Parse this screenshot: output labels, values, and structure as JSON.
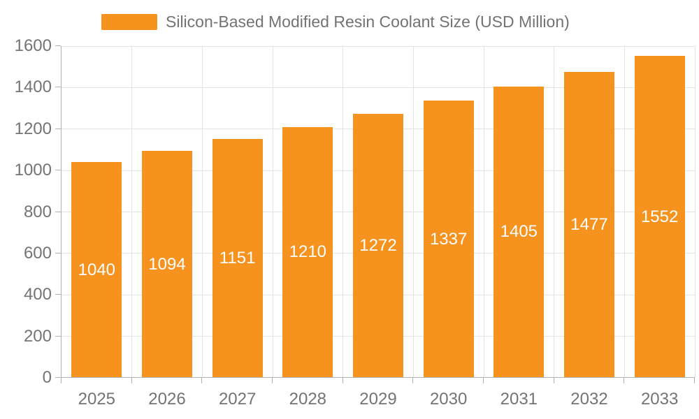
{
  "page": {
    "background": "#FFFFFF"
  },
  "colors": {
    "bar": "#F6921E",
    "bar_label": "#FFFFFF",
    "axis_line": "#B0B0B0",
    "grid_line": "#E3E3E3",
    "axis_text": "#747474",
    "legend_text": "#737373"
  },
  "legend": {
    "label": "Silicon-Based Modified Resin Coolant Size (USD Million)",
    "swatch_color": "#F6921E"
  },
  "chart_data": {
    "type": "bar",
    "title": "Silicon-Based Modified Resin Coolant Size (USD Million)",
    "categories": [
      "2025",
      "2026",
      "2027",
      "2028",
      "2029",
      "2030",
      "2031",
      "2032",
      "2033"
    ],
    "values": [
      1040,
      1094,
      1151,
      1210,
      1272,
      1337,
      1405,
      1477,
      1552
    ],
    "series": [
      {
        "name": "Silicon-Based Modified Resin Coolant Size (USD Million)",
        "values": [
          1040,
          1094,
          1151,
          1210,
          1272,
          1337,
          1405,
          1477,
          1552
        ]
      }
    ],
    "xlabel": "",
    "ylabel": "",
    "ylim": [
      0,
      1600
    ],
    "yticks": [
      0,
      200,
      400,
      600,
      800,
      1000,
      1200,
      1400,
      1600
    ],
    "grid": true,
    "legend_position": "top-left",
    "bar_labels_visible": true,
    "bar_label_position": "inside-center"
  }
}
